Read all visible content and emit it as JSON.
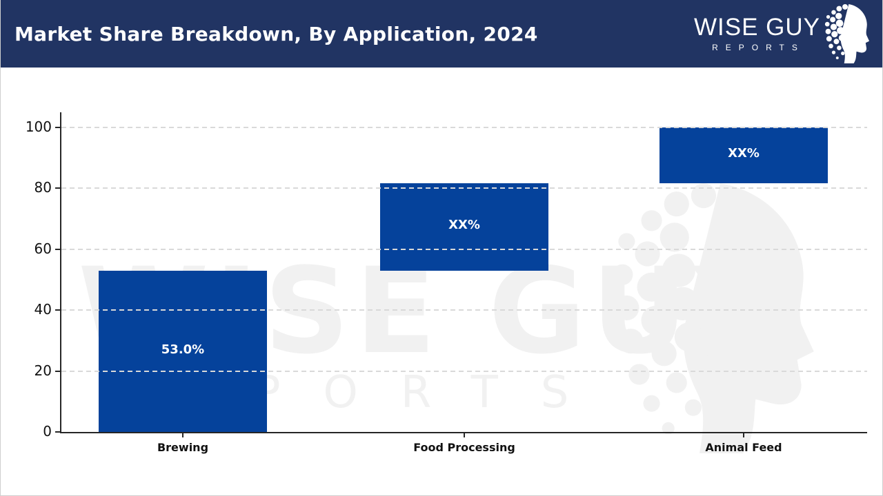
{
  "header": {
    "title": "Market Share Breakdown, By Application, 2024",
    "logo": {
      "line1": "WISE GUY",
      "line2": "REPORTS"
    }
  },
  "watermark": {
    "line1": "WISE GUY",
    "line2": "REPORTS"
  },
  "icons": {
    "brand": "wiseguy-dotted-head"
  },
  "colors": {
    "header_bg": "#213463",
    "bar": "#05429b",
    "bar_label": "#ffffff",
    "grid": "#d9d9d9",
    "axis": "#262626",
    "tick_label": "#111111",
    "watermark": "#f1f1f1",
    "logo_text": "#ffffff"
  },
  "chart_data": {
    "type": "bar",
    "variant": "waterfall-floating-bars",
    "title": "Market Share Breakdown, By Application, 2024",
    "categories": [
      "Brewing",
      "Food Processing",
      "Animal Feed"
    ],
    "segments": [
      {
        "category": "Brewing",
        "start": 0,
        "end": 53.0,
        "label": "53.0%"
      },
      {
        "category": "Food Processing",
        "start": 53.0,
        "end": 81.7,
        "label": "XX%"
      },
      {
        "category": "Animal Feed",
        "start": 81.7,
        "end": 100.0,
        "label": "XX%"
      }
    ],
    "xlabel": "",
    "ylabel": "",
    "ylim": [
      0,
      105
    ],
    "yticks": [
      0,
      20,
      40,
      60,
      80,
      100
    ],
    "grid": "horizontal-dashed",
    "gridlines_over_bars": true,
    "legend": false
  }
}
